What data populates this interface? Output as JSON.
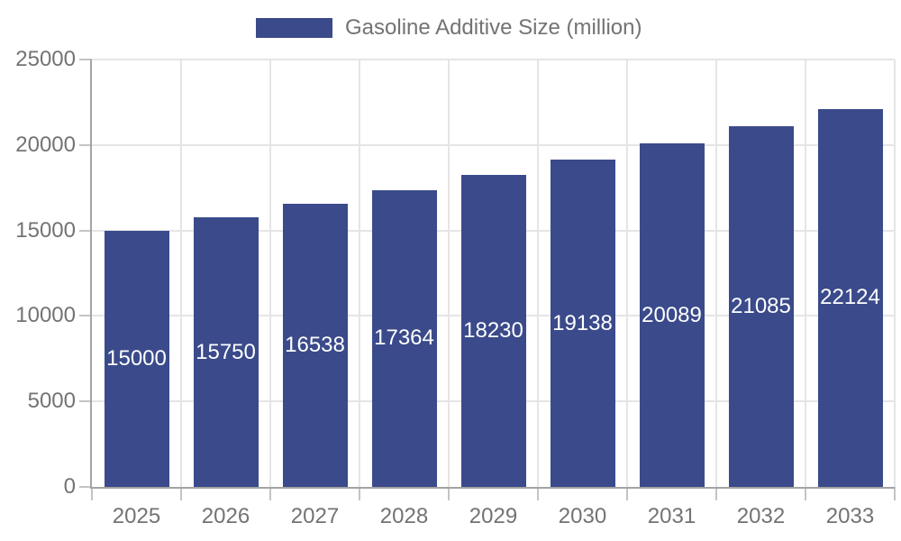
{
  "chart_data": {
    "type": "bar",
    "legend_label": "Gasoline Additive Size (million)",
    "categories": [
      "2025",
      "2026",
      "2027",
      "2028",
      "2029",
      "2030",
      "2031",
      "2032",
      "2033"
    ],
    "values": [
      15000,
      15750,
      16538,
      17364,
      18230,
      19138,
      20089,
      21085,
      22124
    ],
    "title": "",
    "xlabel": "",
    "ylabel": "",
    "ylim": [
      0,
      25000
    ],
    "yticks": [
      0,
      5000,
      10000,
      15000,
      20000,
      25000
    ],
    "grid": true,
    "legend_position": "top",
    "bar_color": "#3a4a8a",
    "value_label_color": "#ffffff",
    "axis_text_color": "#737373"
  }
}
